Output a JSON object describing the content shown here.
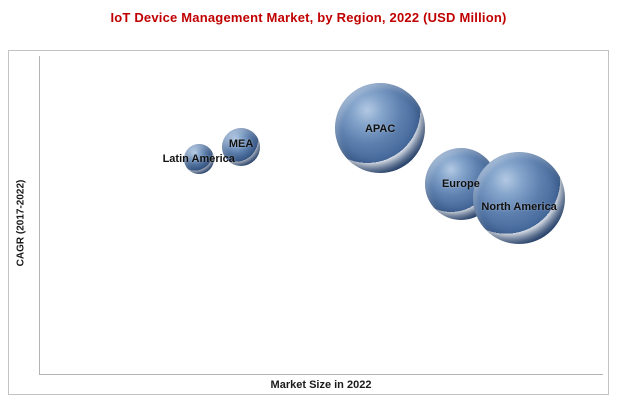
{
  "chart_data": {
    "type": "scatter",
    "subtype": "bubble",
    "title": "IoT Device Management Market, by Region, 2022 (USD Million)",
    "title_color": "#c00000",
    "xlabel": "Market Size in 2022",
    "ylabel": "CAGR (2017-2022)",
    "x_axis": {
      "label": "Market Size in 2022",
      "tick_labels": []
    },
    "y_axis": {
      "label": "CAGR (2017-2022)",
      "tick_labels": []
    },
    "legend": "none",
    "grid": false,
    "bubble_color": "#4a6d9c",
    "bubbles": [
      {
        "label": "Latin America",
        "x_pct": 28.1,
        "y_pct": 32.4,
        "radius_px": 15,
        "label_dy": 0,
        "size_rank": 5
      },
      {
        "label": "MEA",
        "x_pct": 35.6,
        "y_pct": 28.6,
        "radius_px": 19,
        "label_dy": -3,
        "size_rank": 4
      },
      {
        "label": "APAC",
        "x_pct": 60.2,
        "y_pct": 22.6,
        "radius_px": 45,
        "label_dy": 1,
        "size_rank": 2
      },
      {
        "label": "Europe",
        "x_pct": 74.5,
        "y_pct": 40.3,
        "radius_px": 36,
        "label_dy": 0,
        "size_rank": 3
      },
      {
        "label": "North America",
        "x_pct": 84.8,
        "y_pct": 44.7,
        "radius_px": 46,
        "label_dy": 9,
        "size_rank": 1
      }
    ],
    "notes": "Bubble area represents 2022 market size (USD Million); no numeric axis tick labels are shown."
  }
}
